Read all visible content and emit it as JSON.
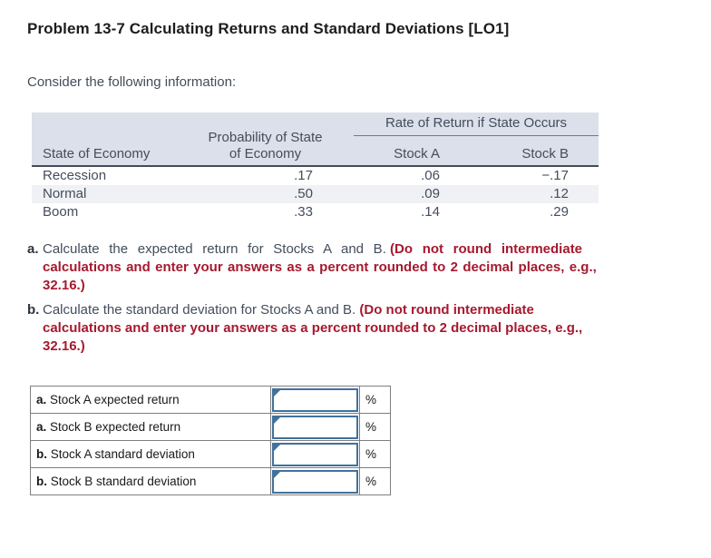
{
  "title": "Problem 13-7 Calculating Returns and Standard Deviations [LO1]",
  "intro": "Consider the following information:",
  "info_table": {
    "spanner": "Rate of Return if State Occurs",
    "col_state": "State of Economy",
    "col_prob_line1": "Probability of State",
    "col_prob_line2": "of Economy",
    "col_stock_a": "Stock A",
    "col_stock_b": "Stock B",
    "rows": [
      {
        "state": "Recession",
        "prob": ".17",
        "stock_a": ".06",
        "stock_b": "−.17"
      },
      {
        "state": "Normal",
        "prob": ".50",
        "stock_a": ".09",
        "stock_b": ".12"
      },
      {
        "state": "Boom",
        "prob": ".33",
        "stock_a": ".14",
        "stock_b": ".29"
      }
    ]
  },
  "requirements": [
    {
      "letter": "a.",
      "text": "Calculate the expected return for Stocks A and B.",
      "red_line1": "(Do not round intermediate",
      "red_line2": "calculations and enter your answers as a percent rounded to 2 decimal places, e.g.,",
      "red_line3": "32.16.)"
    },
    {
      "letter": "b.",
      "text": "Calculate the standard deviation for Stocks A and B.",
      "red_line1": "(Do not round intermediate",
      "red_line2": "calculations and enter your answers as a percent rounded to 2 decimal places, e.g.,",
      "red_line3": "32.16.)"
    }
  ],
  "answer_table": {
    "rows": [
      {
        "prefix": "a.",
        "label": "Stock A expected return",
        "value": "",
        "unit": "%"
      },
      {
        "prefix": "a.",
        "label": "Stock B expected return",
        "value": "",
        "unit": "%"
      },
      {
        "prefix": "b.",
        "label": "Stock A standard deviation",
        "value": "",
        "unit": "%"
      },
      {
        "prefix": "b.",
        "label": "Stock B standard deviation",
        "value": "",
        "unit": "%"
      }
    ]
  },
  "colors": {
    "header_band": "#dbe0ea",
    "row_stripe": "#f0f1f4",
    "instruction_red": "#a6192e",
    "input_border_blue": "#41719c",
    "table_text": "#434d5b"
  }
}
